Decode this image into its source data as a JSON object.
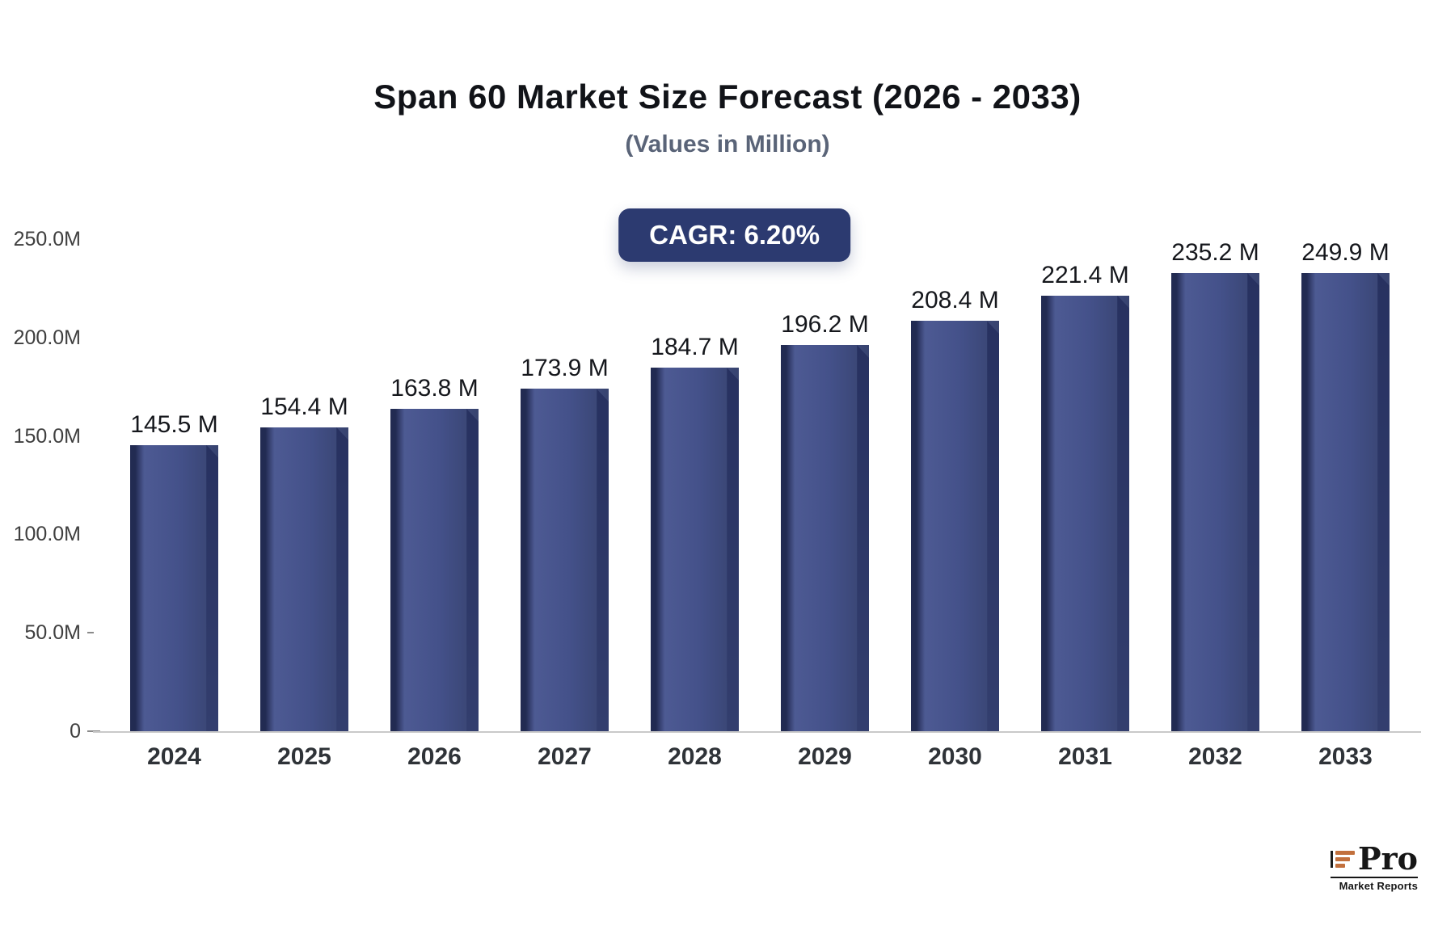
{
  "title": "Span 60 Market Size Forecast (2026 - 2033)",
  "subtitle": "(Values in Million)",
  "cagr_label": "CAGR: 6.20%",
  "chart_data": {
    "type": "bar",
    "title": "Span 60 Market Size Forecast (2026 - 2033)",
    "subtitle": "(Values in Million)",
    "categories": [
      "2024",
      "2025",
      "2026",
      "2027",
      "2028",
      "2029",
      "2030",
      "2031",
      "2032",
      "2033"
    ],
    "values": [
      145.5,
      154.4,
      163.8,
      173.9,
      184.7,
      196.2,
      208.4,
      221.4,
      235.2,
      249.9
    ],
    "bar_labels": [
      "145.5 M",
      "154.4 M",
      "163.8 M",
      "173.9 M",
      "184.7 M",
      "196.2 M",
      "208.4 M",
      "221.4 M",
      "235.2 M",
      "249.9 M"
    ],
    "xlabel": "",
    "ylabel": "",
    "ylim": [
      0,
      250
    ],
    "yticks": [
      {
        "label": "250.0M",
        "value": 250
      },
      {
        "label": "200.0M",
        "value": 200
      },
      {
        "label": "150.0M",
        "value": 150
      },
      {
        "label": "100.0M",
        "value": 100
      },
      {
        "label": "50.0M",
        "value": 50
      },
      {
        "label": "0",
        "value": 0
      }
    ],
    "grid": false,
    "legend": "none",
    "bar_color": "#44518a",
    "bar_edge_color": "#222b52",
    "cagr": "6.20%"
  },
  "colors": {
    "badge_background": "#2c3a70",
    "badge_text": "#ffffff",
    "title_text": "#111318",
    "subtitle_text": "#5a6478",
    "axis_line": "#c9c9c9",
    "logo_accent": "#c2703d"
  },
  "logo": {
    "name": "Pro",
    "subtitle": "Market Reports"
  }
}
